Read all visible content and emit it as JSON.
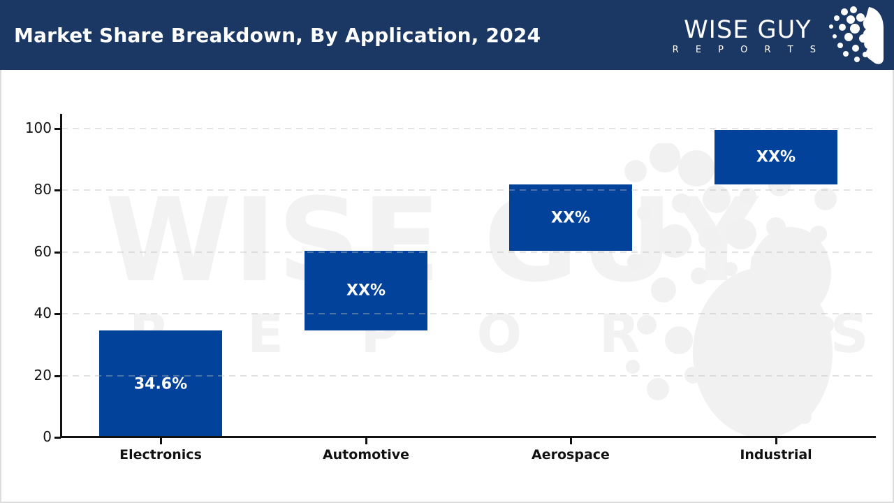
{
  "header": {
    "title": "Market Share Breakdown, By Application, 2024",
    "background_color": "#1b3764",
    "logo": {
      "name": "WISE GUY",
      "subtitle": "R E P O R T S"
    }
  },
  "watermark": {
    "line1": "WISE GUY",
    "line2": "R E P O R T S"
  },
  "chart_data": {
    "type": "bar",
    "subtype": "waterfall",
    "title": "Market Share Breakdown, By Application, 2024",
    "categories": [
      "Electronics",
      "Automotive",
      "Aerospace",
      "Industrial"
    ],
    "series": [
      {
        "name": "Market share (%)",
        "ranges": [
          [
            0,
            34.6
          ],
          [
            34.6,
            60.3
          ],
          [
            60.3,
            81.9
          ],
          [
            81.9,
            99.6
          ]
        ]
      }
    ],
    "bar_labels": [
      "34.6%",
      "XX%",
      "XX%",
      "XX%"
    ],
    "bar_color": "#03429b",
    "bar_label_color": "#ffffff",
    "ylim": [
      0,
      105
    ],
    "yticks": [
      0,
      20,
      40,
      60,
      80,
      100
    ],
    "grid": {
      "axis": "y",
      "style": "dashed"
    },
    "legend": null,
    "xlabel": "",
    "ylabel": ""
  }
}
